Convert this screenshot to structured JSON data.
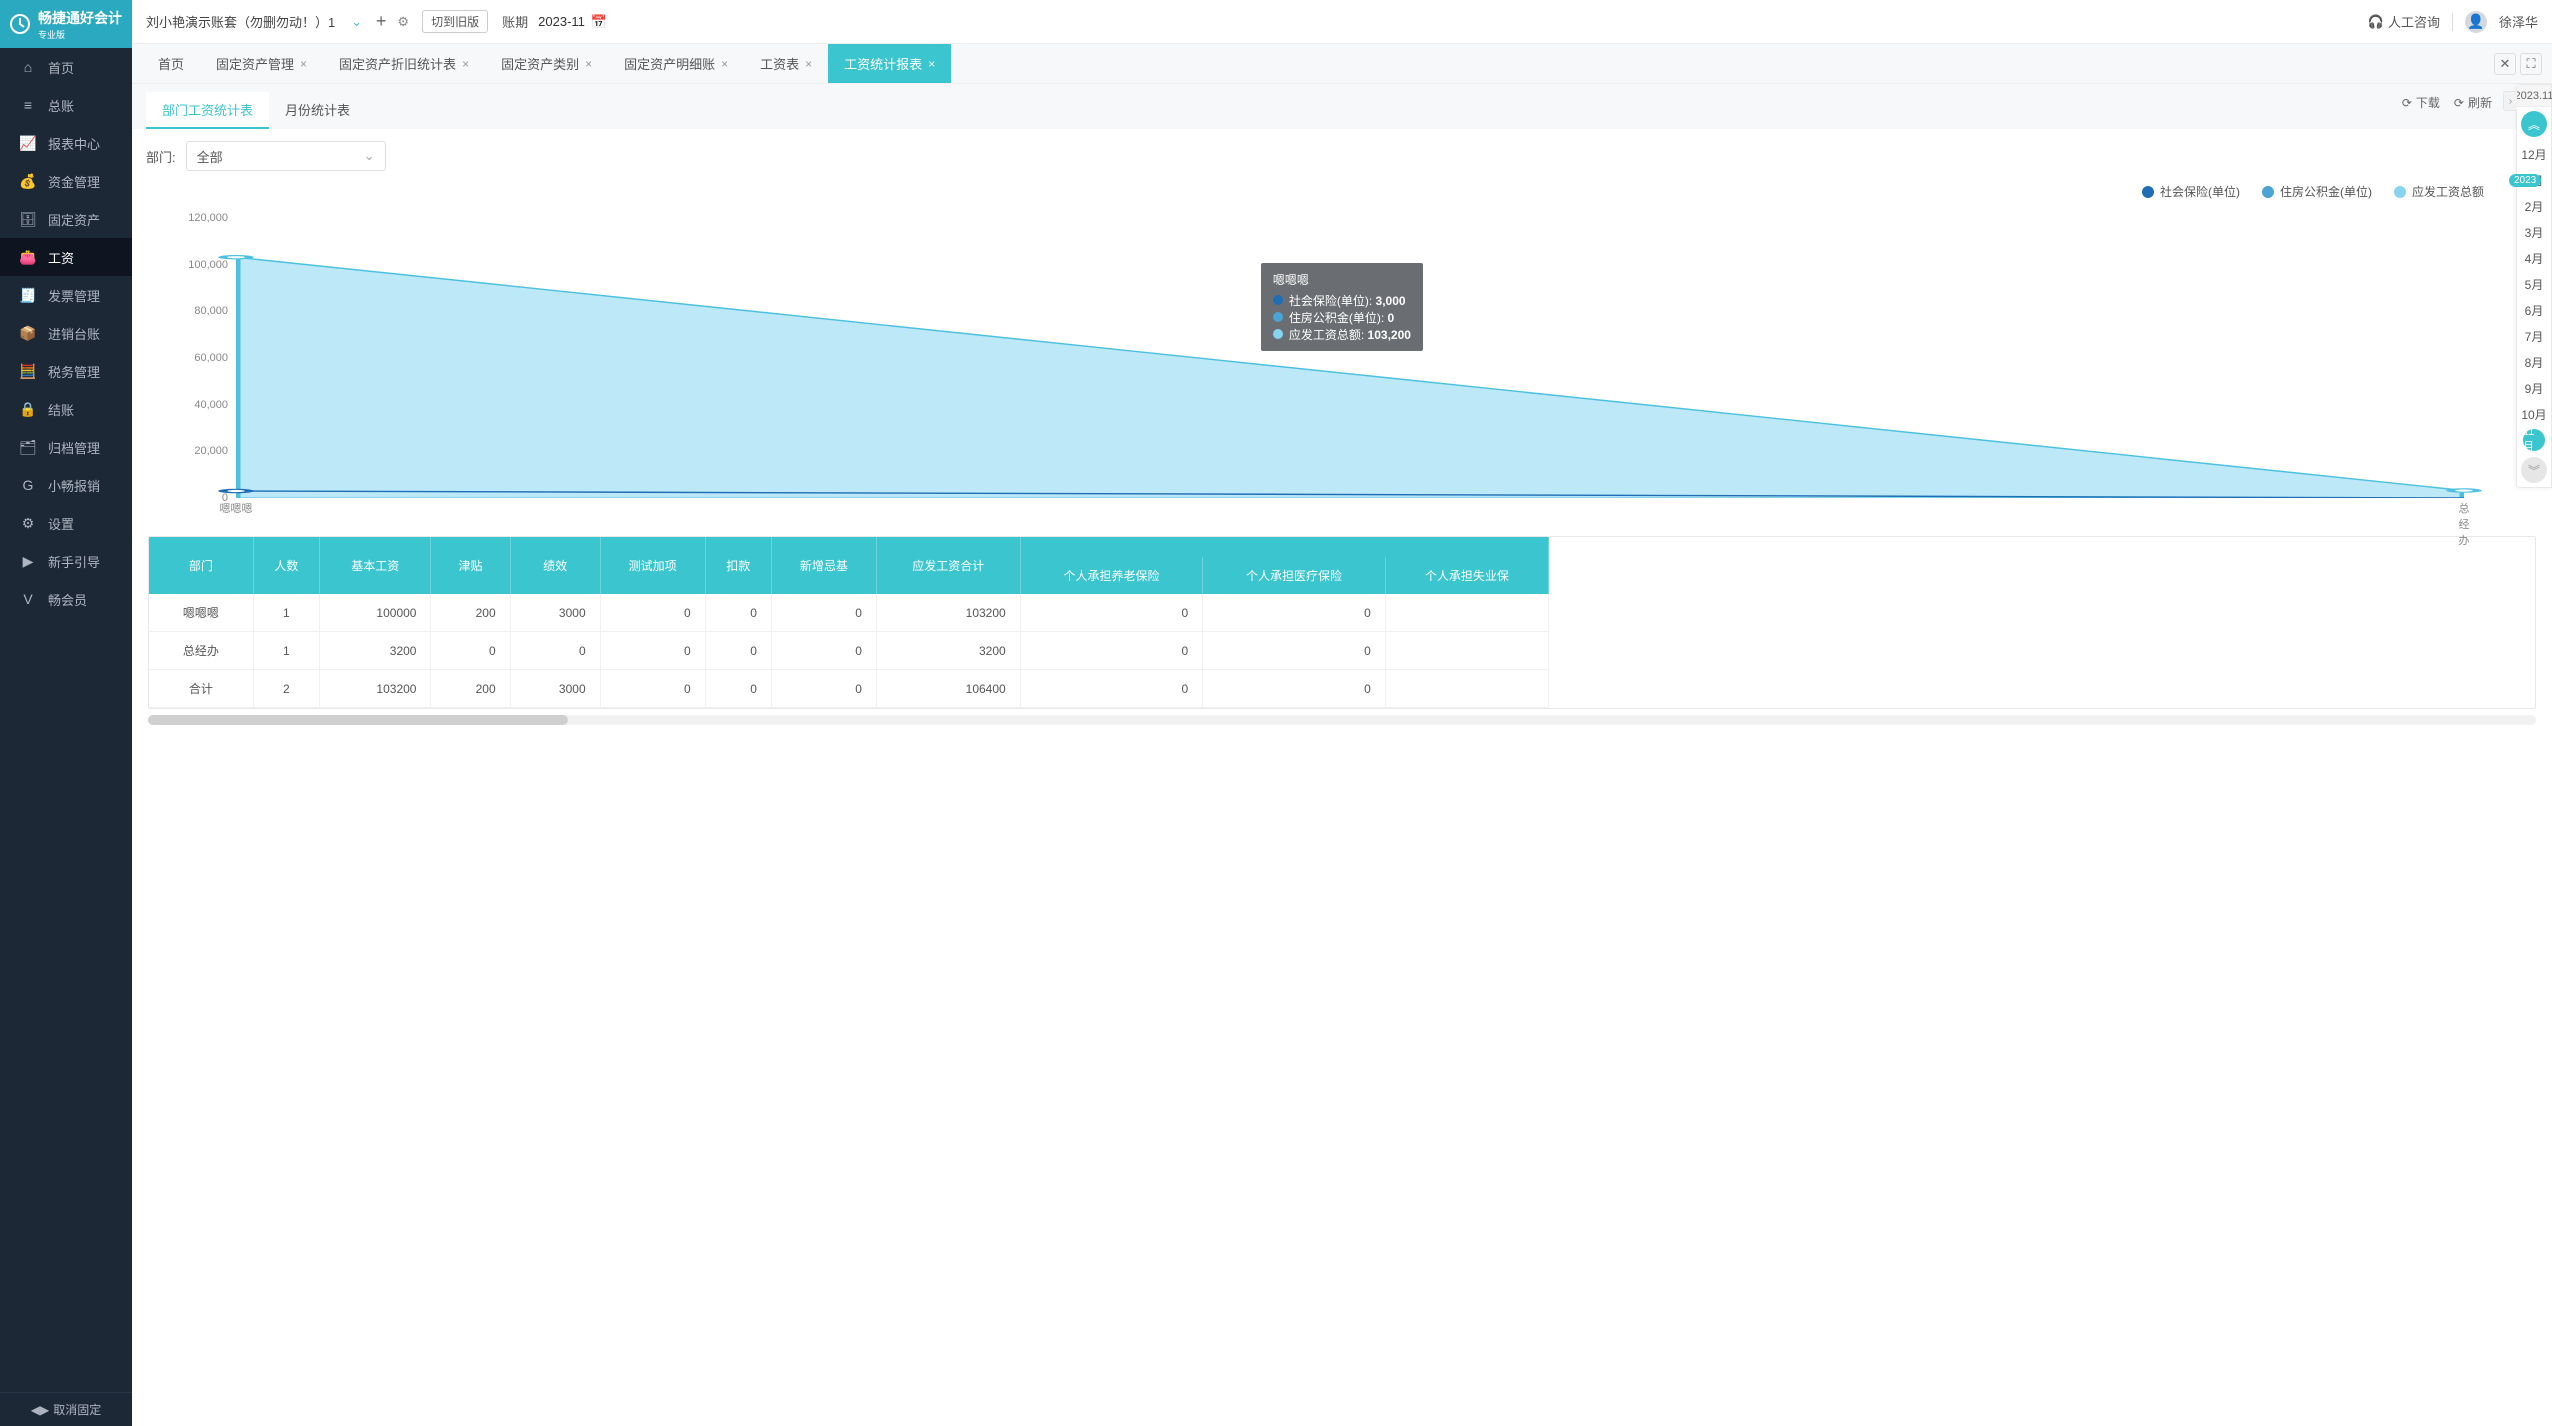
{
  "brand": {
    "name": "畅捷通好会计",
    "edition": "专业版"
  },
  "topbar": {
    "account_name": "刘小艳演示账套（勿删勿动！）1",
    "switch_old": "切到旧版",
    "period_label": "账期",
    "period_value": "2023-11",
    "support": "人工咨询",
    "username": "徐泽华"
  },
  "sidebar": {
    "items": [
      {
        "label": "首页",
        "icon": "home"
      },
      {
        "label": "总账",
        "icon": "ledger"
      },
      {
        "label": "报表中心",
        "icon": "reports"
      },
      {
        "label": "资金管理",
        "icon": "funds"
      },
      {
        "label": "固定资产",
        "icon": "assets"
      },
      {
        "label": "工资",
        "icon": "payroll",
        "active": true
      },
      {
        "label": "发票管理",
        "icon": "invoice"
      },
      {
        "label": "进销台账",
        "icon": "inventory"
      },
      {
        "label": "税务管理",
        "icon": "tax"
      },
      {
        "label": "结账",
        "icon": "close"
      },
      {
        "label": "归档管理",
        "icon": "archive"
      },
      {
        "label": "小畅报销",
        "icon": "expense"
      },
      {
        "label": "设置",
        "icon": "settings"
      },
      {
        "label": "新手引导",
        "icon": "guide"
      },
      {
        "label": "畅会员",
        "icon": "member"
      }
    ],
    "footer": "取消固定"
  },
  "tabs": {
    "items": [
      {
        "label": "首页",
        "closable": false
      },
      {
        "label": "固定资产管理",
        "closable": true
      },
      {
        "label": "固定资产折旧统计表",
        "closable": true
      },
      {
        "label": "固定资产类别",
        "closable": true
      },
      {
        "label": "固定资产明细账",
        "closable": true
      },
      {
        "label": "工资表",
        "closable": true
      },
      {
        "label": "工资统计报表",
        "closable": true,
        "active": true
      }
    ]
  },
  "subtabs": {
    "items": [
      {
        "label": "部门工资统计表",
        "active": true
      },
      {
        "label": "月份统计表"
      }
    ],
    "download": "下载",
    "refresh": "刷新"
  },
  "filter": {
    "label": "部门:",
    "value": "全部"
  },
  "chart": {
    "type": "area",
    "ylim": [
      0,
      120000
    ],
    "ytick_step": 20000,
    "yticks": [
      "0",
      "20,000",
      "40,000",
      "60,000",
      "80,000",
      "100,000",
      "120,000"
    ],
    "categories": [
      "嗯嗯嗯",
      "总经办"
    ],
    "series": [
      {
        "name": "社会保险(单位)",
        "color": "#1f6db5",
        "values": [
          3000,
          0
        ]
      },
      {
        "name": "住房公积金(单位)",
        "color": "#4aa4d6",
        "values": [
          0,
          0
        ]
      },
      {
        "name": "应发工资总额",
        "color": "#86d4ef",
        "values": [
          103200,
          3200
        ]
      }
    ],
    "background_color": "#ffffff",
    "area_fill": "#a6e0f4",
    "area_stroke": "#4cc0e0",
    "line_width": 2,
    "marker_radius": 5,
    "tooltip": {
      "title": "嗯嗯嗯",
      "rows": [
        {
          "color": "#1f6db5",
          "label": "社会保险(单位)",
          "value": "3,000"
        },
        {
          "color": "#4aa4d6",
          "label": "住房公积金(单位)",
          "value": "0"
        },
        {
          "color": "#86d4ef",
          "label": "应发工资总额",
          "value": "103,200"
        }
      ]
    }
  },
  "table": {
    "columns_top": [
      "部门",
      "人数",
      "基本工资",
      "津贴",
      "绩效",
      "测试加项",
      "扣款",
      "新增忌基",
      "应发工资合计"
    ],
    "columns_nested": [
      "个人承担养老保险",
      "个人承担医疗保险",
      "个人承担失业保"
    ],
    "rows": [
      {
        "dept": "嗯嗯嗯",
        "count": 1,
        "base": 100000,
        "allowance": 200,
        "perf": 3000,
        "extra": 0,
        "deduct": 0,
        "newbase": 0,
        "total": 103200,
        "c1": 0,
        "c2": 0,
        "c3": ""
      },
      {
        "dept": "总经办",
        "count": 1,
        "base": 3200,
        "allowance": 0,
        "perf": 0,
        "extra": 0,
        "deduct": 0,
        "newbase": 0,
        "total": 3200,
        "c1": 0,
        "c2": 0,
        "c3": ""
      },
      {
        "dept": "合计",
        "count": 2,
        "base": 103200,
        "allowance": 200,
        "perf": 3000,
        "extra": 0,
        "deduct": 0,
        "newbase": 0,
        "total": 106400,
        "c1": 0,
        "c2": 0,
        "c3": ""
      }
    ]
  },
  "period_selector": {
    "top_label": "2023.11",
    "year_badge": "2023",
    "months": [
      "12月",
      "1月",
      "2月",
      "3月",
      "4月",
      "5月",
      "6月",
      "7月",
      "8月",
      "9月",
      "10月",
      "11月"
    ],
    "selected": "11月"
  }
}
